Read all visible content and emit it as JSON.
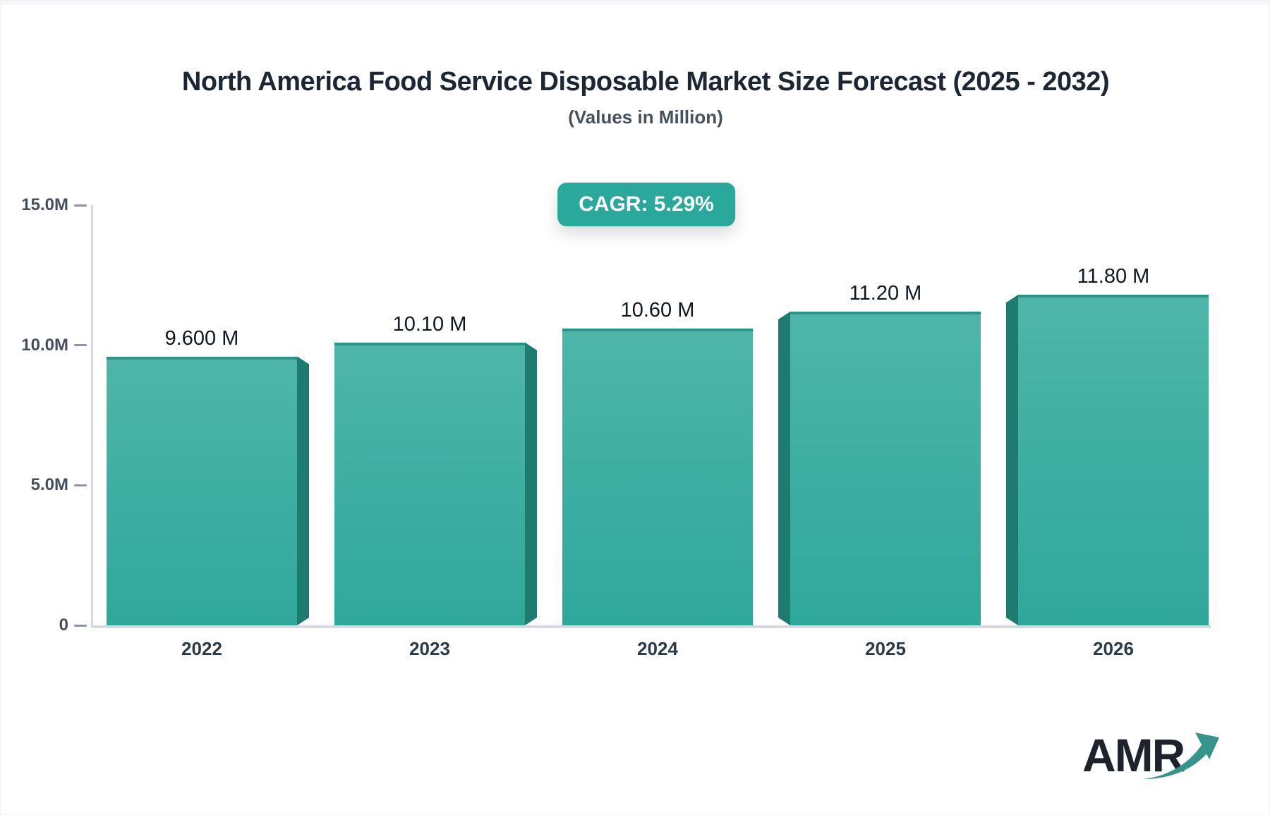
{
  "chart_data": {
    "type": "bar",
    "title": "North America Food Service Disposable Market Size Forecast (2025 - 2032)",
    "subtitle": "(Values in Million)",
    "annotation": "CAGR: 5.29%",
    "categories": [
      "2022",
      "2023",
      "2024",
      "2025",
      "2026"
    ],
    "values": [
      9.6,
      10.1,
      10.6,
      11.2,
      11.8
    ],
    "bar_labels": [
      "9.600 M",
      "10.10 M",
      "10.60 M",
      "11.20 M",
      "11.80 M"
    ],
    "unit": "Million",
    "xlabel": "",
    "ylabel": "",
    "ylim": [
      0,
      15
    ],
    "y_ticks": [
      "15.0M",
      "10.0M",
      "5.0M",
      "0"
    ],
    "y_tick_values": [
      15,
      10,
      5,
      0
    ],
    "grid": false,
    "legend": false,
    "colors": {
      "bar_top": "#4fb5aa",
      "bar_bottom": "#2ea89a",
      "bar_side": "#1e7b70",
      "bar_edge": "#2e9187",
      "badge_bg": "#2aa89b",
      "title_text": "#1d2733",
      "subtitle_text": "#47525f",
      "axis_text": "#454f5d",
      "x_axis_text": "#2c3947",
      "axis_line": "#d6d9e0",
      "tick_mark": "#8d95a2",
      "logo_text": "#1c232b",
      "logo_arrow": "#35948c"
    }
  },
  "logo": {
    "text": "AMR"
  }
}
